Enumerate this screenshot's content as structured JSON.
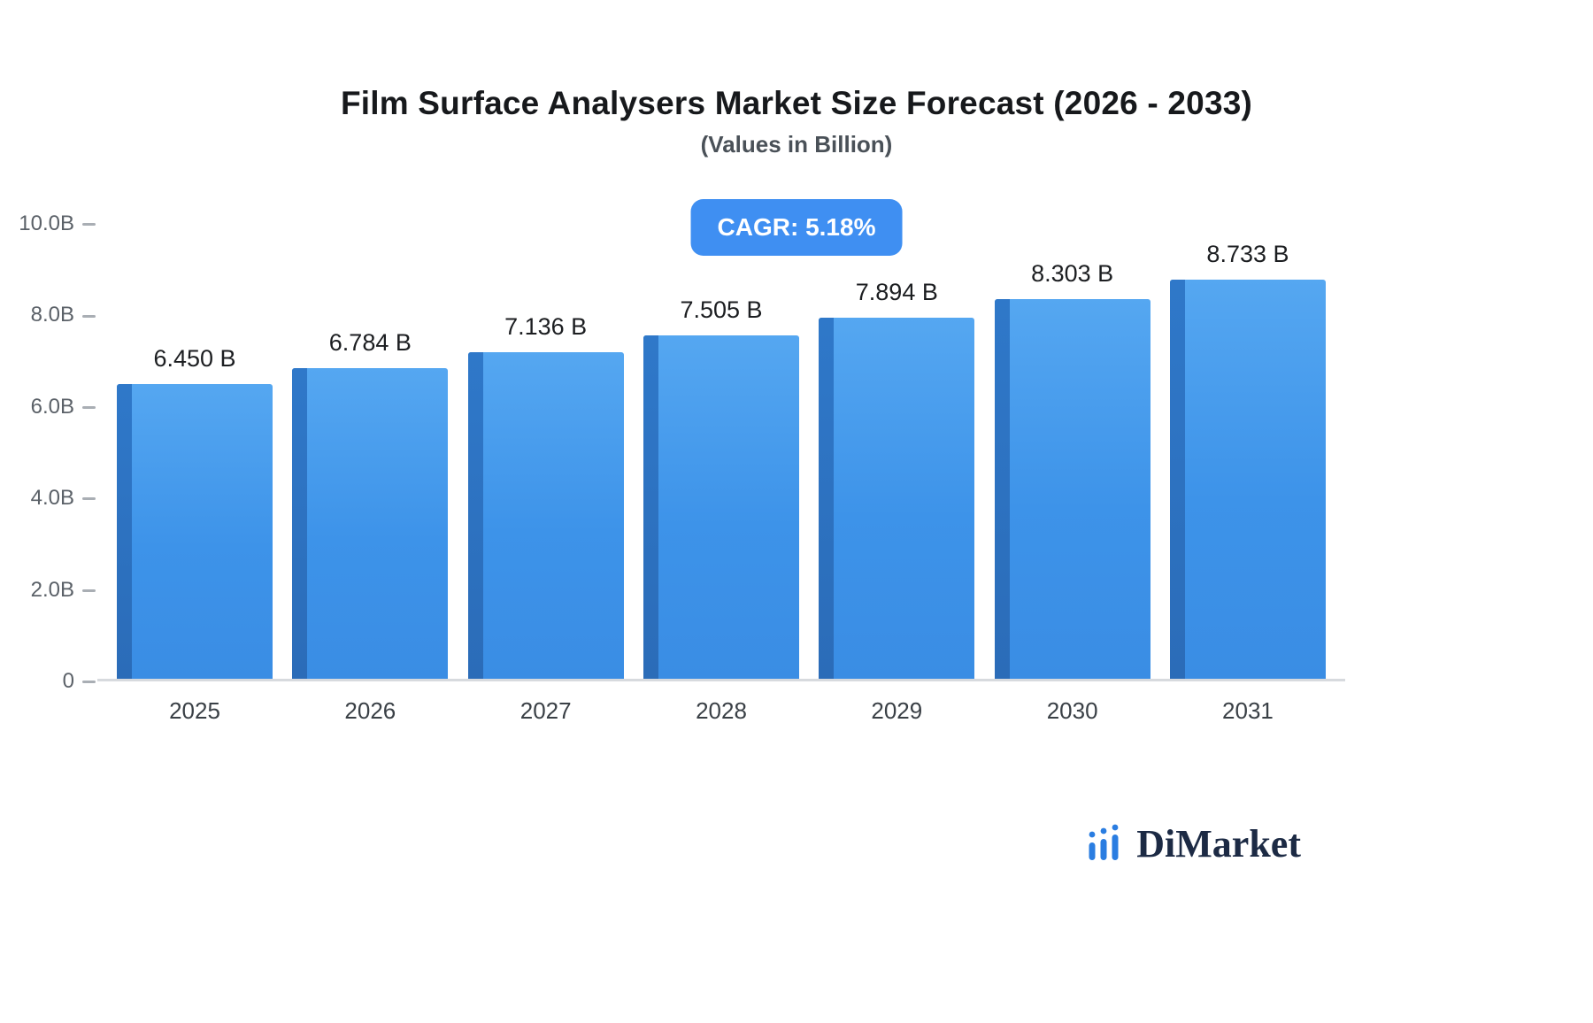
{
  "chart_data": {
    "type": "bar",
    "title": "Film Surface Analysers Market Size Forecast (2026 - 2033)",
    "subtitle": "(Values in Billion)",
    "cagr_label": "CAGR: 5.18%",
    "categories": [
      "2025",
      "2026",
      "2027",
      "2028",
      "2029",
      "2030",
      "2031"
    ],
    "values": [
      6.45,
      6.784,
      7.136,
      7.505,
      7.894,
      8.303,
      8.733
    ],
    "value_labels": [
      "6.450 B",
      "6.784 B",
      "7.136 B",
      "7.505 B",
      "7.894 B",
      "8.303 B",
      "8.733 B"
    ],
    "xlabel": "",
    "ylabel": "",
    "ylim": [
      0,
      10
    ],
    "yticks": [
      {
        "label": "10.0B",
        "value": 10
      },
      {
        "label": "8.0B",
        "value": 8
      },
      {
        "label": "6.0B",
        "value": 6
      },
      {
        "label": "4.0B",
        "value": 4
      },
      {
        "label": "2.0B",
        "value": 2
      },
      {
        "label": "0",
        "value": 0
      }
    ],
    "grid": false,
    "legend": "none",
    "bar_color": "#3d93e9",
    "bar_side_color": "#2b6cb8",
    "badge_color": "#3f8ff2"
  },
  "logo": {
    "text": "DiMarket",
    "icon": "bar-chart-icon",
    "icon_color": "#2a7de1"
  }
}
